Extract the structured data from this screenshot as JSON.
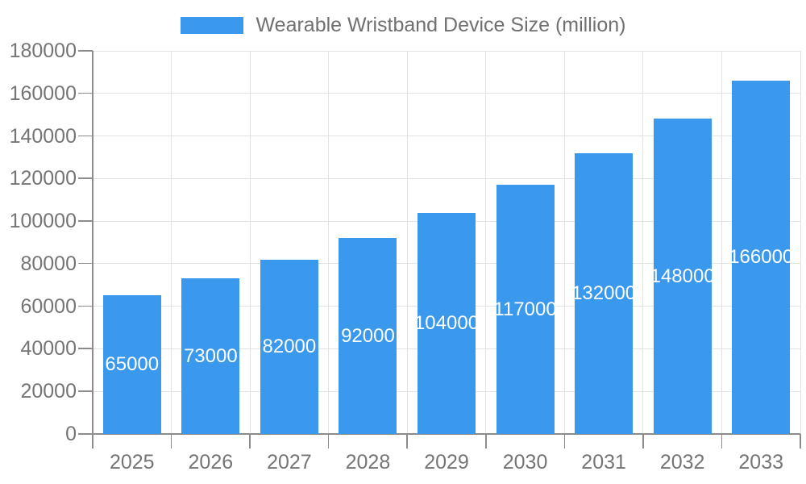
{
  "legend": {
    "label": "Wearable Wristband Device Size (million)"
  },
  "colors": {
    "bar": "#3A99EC",
    "grid_line": "#E3E3E3",
    "axis_line": "#8C8C8C",
    "tick_label": "#757575",
    "legend_label": "#707070",
    "value_label": "#FFFFFF",
    "background": "#FFFFFF"
  },
  "chart_data": {
    "type": "bar",
    "title": "",
    "series_name": "Wearable Wristband Device Size (million)",
    "categories": [
      "2025",
      "2026",
      "2027",
      "2028",
      "2029",
      "2030",
      "2031",
      "2032",
      "2033"
    ],
    "values": [
      65000,
      73000,
      82000,
      92000,
      104000,
      117000,
      132000,
      148000,
      166000
    ],
    "value_label_position": "inside-center",
    "xlabel": "",
    "ylabel": "",
    "ylim": [
      0,
      180000
    ],
    "ytick_interval": 20000,
    "ytick_labels": [
      "0",
      "20000",
      "40000",
      "60000",
      "80000",
      "100000",
      "120000",
      "140000",
      "160000",
      "180000"
    ],
    "grid": "horizontal-and-vertical",
    "legend_position": "top-center"
  }
}
